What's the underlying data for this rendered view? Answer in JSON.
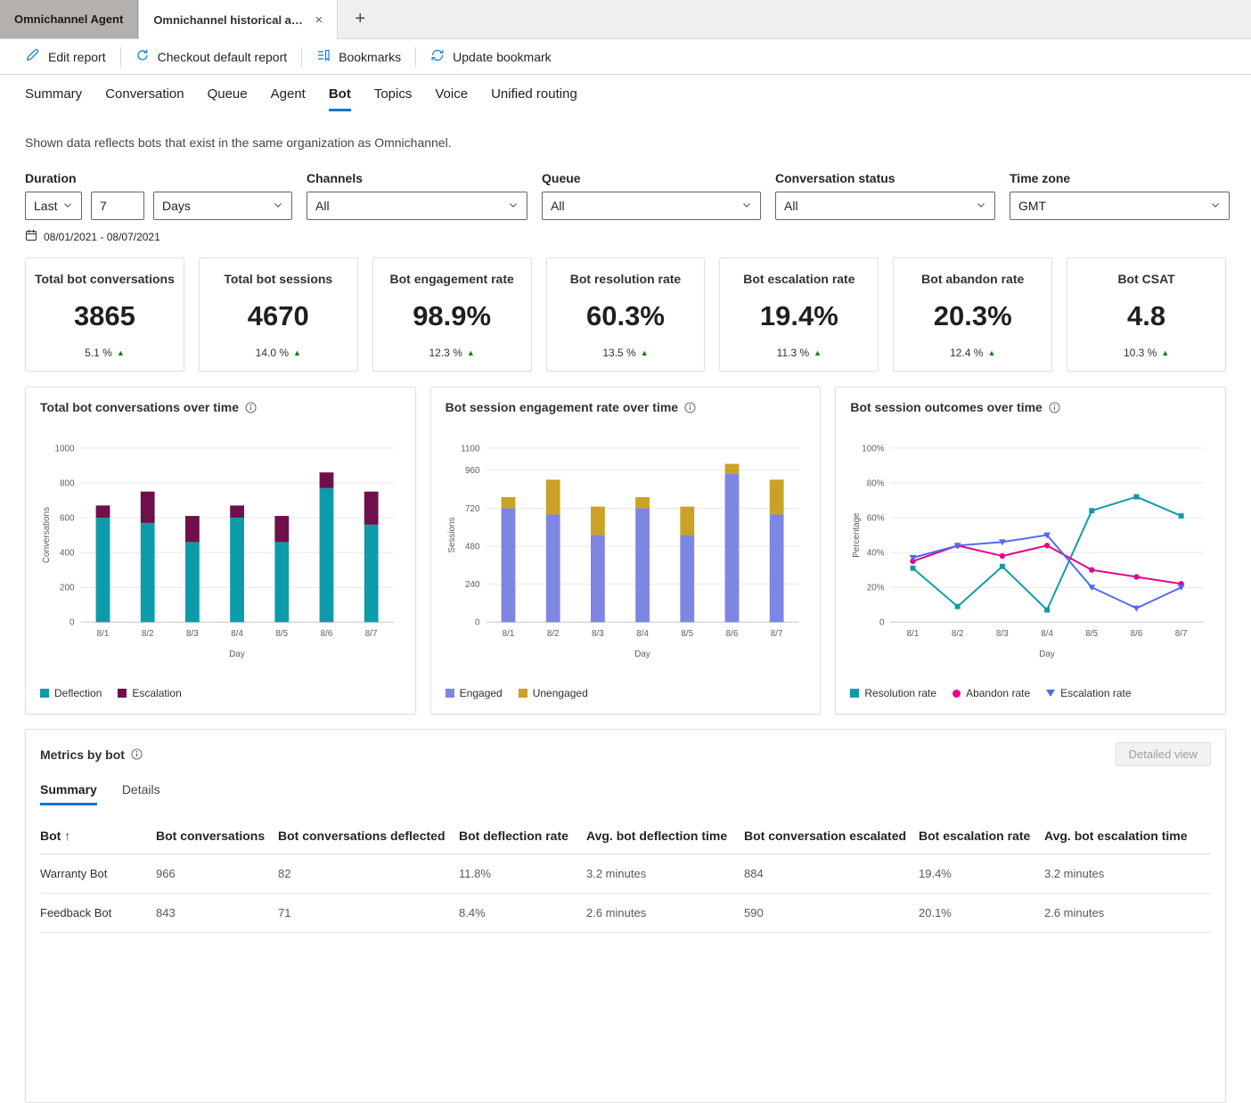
{
  "window": {
    "tabs": [
      {
        "label": "Omnichannel Agent"
      },
      {
        "label": "Omnichannel historical ana..."
      }
    ],
    "close_icon": "×",
    "new_tab_icon": "+"
  },
  "toolbar": {
    "items": [
      "Edit report",
      "Checkout default report",
      "Bookmarks",
      "Update bookmark"
    ]
  },
  "nav": {
    "tabs": [
      "Summary",
      "Conversation",
      "Queue",
      "Agent",
      "Bot",
      "Topics",
      "Voice",
      "Unified routing"
    ],
    "active": "Bot"
  },
  "notice": "Shown data reflects bots that exist in the same organization as Omnichannel.",
  "filters": {
    "duration": {
      "label": "Duration",
      "range": "Last",
      "value": "7",
      "unit": "Days"
    },
    "channels": {
      "label": "Channels",
      "value": "All"
    },
    "queue": {
      "label": "Queue",
      "value": "All"
    },
    "status": {
      "label": "Conversation status",
      "value": "All"
    },
    "timezone": {
      "label": "Time zone",
      "value": "GMT"
    },
    "date_range": "08/01/2021 - 08/07/2021"
  },
  "ui": {
    "up_icon": "▲"
  },
  "kpis": [
    {
      "title": "Total bot conversations",
      "value": "3865",
      "delta": "5.1 %"
    },
    {
      "title": "Total bot sessions",
      "value": "4670",
      "delta": "14.0 %"
    },
    {
      "title": "Bot engagement rate",
      "value": "98.9%",
      "delta": "12.3 %"
    },
    {
      "title": "Bot resolution rate",
      "value": "60.3%",
      "delta": "13.5 %"
    },
    {
      "title": "Bot escalation rate",
      "value": "19.4%",
      "delta": "11.3 %"
    },
    {
      "title": "Bot abandon rate",
      "value": "20.3%",
      "delta": "12.4 %"
    },
    {
      "title": "Bot CSAT",
      "value": "4.8",
      "delta": "10.3 %"
    }
  ],
  "chart_data": [
    {
      "type": "bar",
      "stacked": true,
      "title": "Total bot conversations over time",
      "categories": [
        "8/1",
        "8/2",
        "8/3",
        "8/4",
        "8/5",
        "8/6",
        "8/7"
      ],
      "series": [
        {
          "name": "Deflection",
          "color": "#0E9BA9",
          "values": [
            600,
            570,
            460,
            600,
            460,
            770,
            560
          ]
        },
        {
          "name": "Escalation",
          "color": "#6E104A",
          "values": [
            70,
            180,
            150,
            70,
            150,
            90,
            190
          ]
        }
      ],
      "xlabel": "Day",
      "ylabel": "Conversations",
      "ylim": [
        0,
        1000
      ],
      "yticks": [
        0,
        200,
        400,
        600,
        800,
        1000
      ],
      "ytick_labels": [
        "0",
        "200",
        "400",
        "600",
        "800",
        "1000"
      ],
      "grid": true,
      "legend_position": "bottom"
    },
    {
      "type": "bar",
      "stacked": true,
      "title": "Bot session engagement rate over time",
      "categories": [
        "8/1",
        "8/2",
        "8/3",
        "8/4",
        "8/5",
        "8/6",
        "8/7"
      ],
      "series": [
        {
          "name": "Engaged",
          "color": "#7E86E3",
          "values": [
            720,
            680,
            550,
            720,
            550,
            940,
            680
          ]
        },
        {
          "name": "Unengaged",
          "color": "#C9A227",
          "values": [
            70,
            220,
            180,
            70,
            180,
            60,
            220
          ]
        }
      ],
      "xlabel": "Day",
      "ylabel": "Sessions",
      "ylim": [
        0,
        1100
      ],
      "yticks": [
        0,
        240,
        480,
        720,
        960,
        1100
      ],
      "ytick_labels": [
        "0",
        "240",
        "480",
        "720",
        "960",
        "1100"
      ],
      "grid": true,
      "legend_position": "bottom"
    },
    {
      "type": "line",
      "title": "Bot session outcomes over time",
      "categories": [
        "8/1",
        "8/2",
        "8/3",
        "8/4",
        "8/5",
        "8/6",
        "8/7"
      ],
      "series": [
        {
          "name": "Resolution rate",
          "color": "#0E9BA9",
          "marker": "square",
          "values": [
            31,
            9,
            32,
            7,
            64,
            72,
            61
          ]
        },
        {
          "name": "Abandon rate",
          "color": "#E3008C",
          "marker": "circle",
          "values": [
            35,
            44,
            38,
            44,
            30,
            26,
            22
          ]
        },
        {
          "name": "Escalation rate",
          "color": "#4F6BED",
          "marker": "triangle",
          "values": [
            37,
            44,
            46,
            50,
            20,
            8,
            20
          ]
        }
      ],
      "xlabel": "Day",
      "ylabel": "Percentage",
      "ylim": [
        0,
        100
      ],
      "yticks": [
        0,
        20,
        40,
        60,
        80,
        100
      ],
      "ytick_labels": [
        "0",
        "20%",
        "40%",
        "60%",
        "80%",
        "100%"
      ],
      "grid": true,
      "legend_position": "bottom"
    }
  ],
  "metrics": {
    "title": "Metrics by bot",
    "detailed_view": "Detailed view",
    "tabs": [
      "Summary",
      "Details"
    ],
    "active_tab": "Summary",
    "sort_icon": "↑",
    "columns": [
      "Bot",
      "Bot conversations",
      "Bot conversations deflected",
      "Bot deflection rate",
      "Avg. bot deflection time",
      "Bot conversation escalated",
      "Bot escalation rate",
      "Avg. bot escalation time"
    ],
    "rows": [
      [
        "Warranty Bot",
        "966",
        "82",
        "11.8%",
        "3.2 minutes",
        "884",
        "19.4%",
        "3.2 minutes"
      ],
      [
        "Feedback Bot",
        "843",
        "71",
        "8.4%",
        "2.6 minutes",
        "590",
        "20.1%",
        "2.6 minutes"
      ]
    ]
  },
  "colors": {
    "accent": "#0078d4",
    "positive": "#107c10",
    "deflection": "#0E9BA9",
    "escalation": "#6E104A",
    "engaged": "#7E86E3",
    "unengaged": "#C9A227",
    "resolution_rate": "#0E9BA9",
    "abandon_rate": "#E3008C",
    "escalation_rate": "#4F6BED"
  }
}
